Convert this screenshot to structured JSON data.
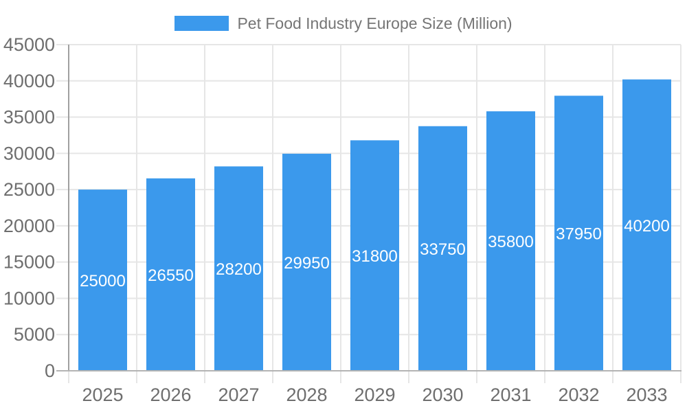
{
  "legend": {
    "label": "Pet Food Industry Europe Size (Million)"
  },
  "chart_data": {
    "type": "bar",
    "title": "Pet Food Industry Europe Size (Million)",
    "categories": [
      "2025",
      "2026",
      "2027",
      "2028",
      "2029",
      "2030",
      "2031",
      "2032",
      "2033"
    ],
    "series": [
      {
        "name": "Pet Food Industry Europe Size (Million)",
        "values": [
          25000,
          26550,
          28200,
          29950,
          31800,
          33750,
          35800,
          37950,
          40200
        ]
      }
    ],
    "value_labels": [
      "25000",
      "26550",
      "28200",
      "29950",
      "31800",
      "33750",
      "35800",
      "37950",
      "40200"
    ],
    "xlabel": "",
    "ylabel": "",
    "ylim": [
      0,
      45000
    ],
    "ytick_step": 5000,
    "ytick_labels": [
      "0",
      "5000",
      "10000",
      "15000",
      "20000",
      "25000",
      "30000",
      "35000",
      "40000",
      "45000"
    ],
    "grid": true,
    "legend_position": "top",
    "colors": {
      "bar": "#3B99EC",
      "grid_line": "#E6E6E6",
      "axis_line": "#A0A0A0",
      "baseline": "#B3B3B3",
      "tick_label": "#6E6E6E",
      "value_label": "#FFFFFF",
      "legend_text": "#757575"
    }
  }
}
